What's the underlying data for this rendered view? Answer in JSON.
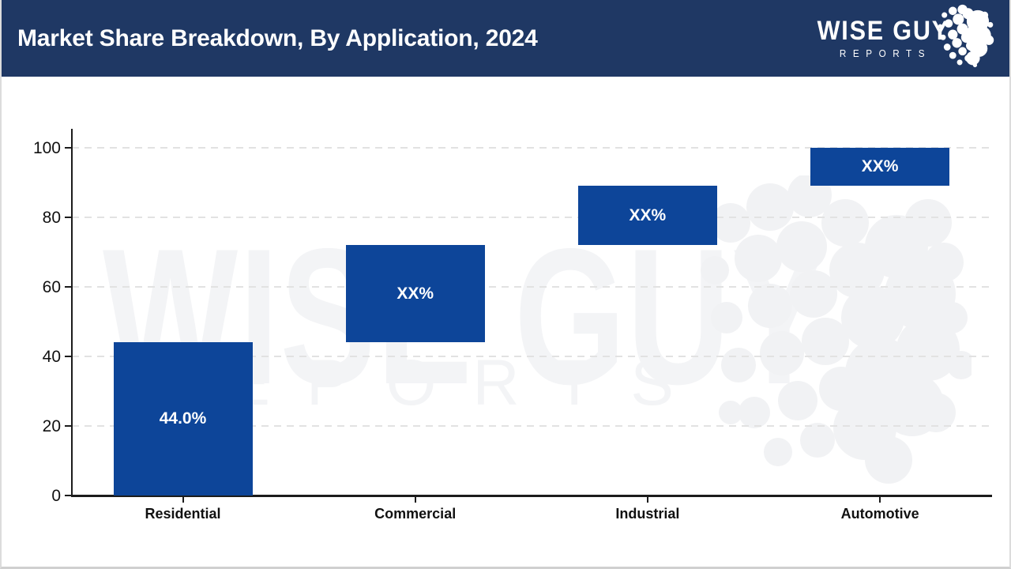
{
  "header": {
    "title": "Market Share Breakdown, By Application, 2024",
    "bg_color": "#1f3864",
    "logo": {
      "line1": "WISE GUY",
      "line2": "REPORTS"
    }
  },
  "watermark": {
    "line1": "WISE GUY",
    "line2": "REPORTS"
  },
  "chart_data": {
    "type": "bar",
    "subtype": "waterfall",
    "title": "Market Share Breakdown, By Application, 2024",
    "categories": [
      "Residential",
      "Commercial",
      "Industrial",
      "Automotive"
    ],
    "values": [
      44,
      28,
      17,
      11
    ],
    "segments": [
      {
        "category": "Residential",
        "start": 0,
        "end": 44,
        "label": "44.0%"
      },
      {
        "category": "Commercial",
        "start": 44,
        "end": 72,
        "label": "XX%"
      },
      {
        "category": "Industrial",
        "start": 72,
        "end": 89,
        "label": "XX%"
      },
      {
        "category": "Automotive",
        "start": 89,
        "end": 100,
        "label": "XX%"
      }
    ],
    "xlabel": "",
    "ylabel": "",
    "ylim": [
      0,
      100
    ],
    "yticks": [
      0,
      20,
      40,
      60,
      80,
      100
    ],
    "grid": "horizontal-dashed",
    "legend": "none",
    "bar_color": "#0d4599",
    "bar_label_color": "#ffffff",
    "axis_color": "#1c1c1c",
    "grid_color": "#e2e2e2",
    "watermark_color": "#f3f4f6"
  }
}
